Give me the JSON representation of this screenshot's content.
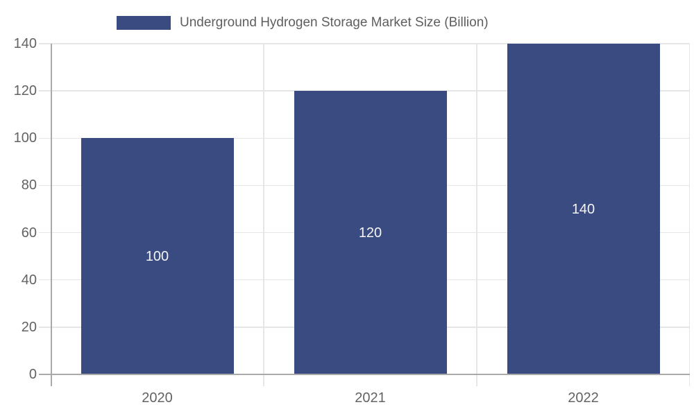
{
  "legend": {
    "label": "Underground Hydrogen Storage Market Size (Billion)"
  },
  "chart_data": {
    "type": "bar",
    "title": "",
    "xlabel": "",
    "ylabel": "",
    "categories": [
      "2020",
      "2021",
      "2022"
    ],
    "values": [
      100,
      120,
      140
    ],
    "bar_value_labels": [
      "100",
      "120",
      "140"
    ],
    "series_name": "Underground Hydrogen Storage Market Size (Billion)",
    "ylim": [
      0,
      140
    ],
    "yticks": [
      0,
      20,
      40,
      60,
      80,
      100,
      120,
      140
    ],
    "grid": true,
    "legend_position": "top-center",
    "colors": {
      "bar": "#3A4B82",
      "grid": "#E6E6E6",
      "axis": "#A9A9A9",
      "tick_text": "#636363",
      "legend_text": "#5E5E5E",
      "value_label": "#F5F5F5",
      "background": "#FFFFFF"
    }
  }
}
